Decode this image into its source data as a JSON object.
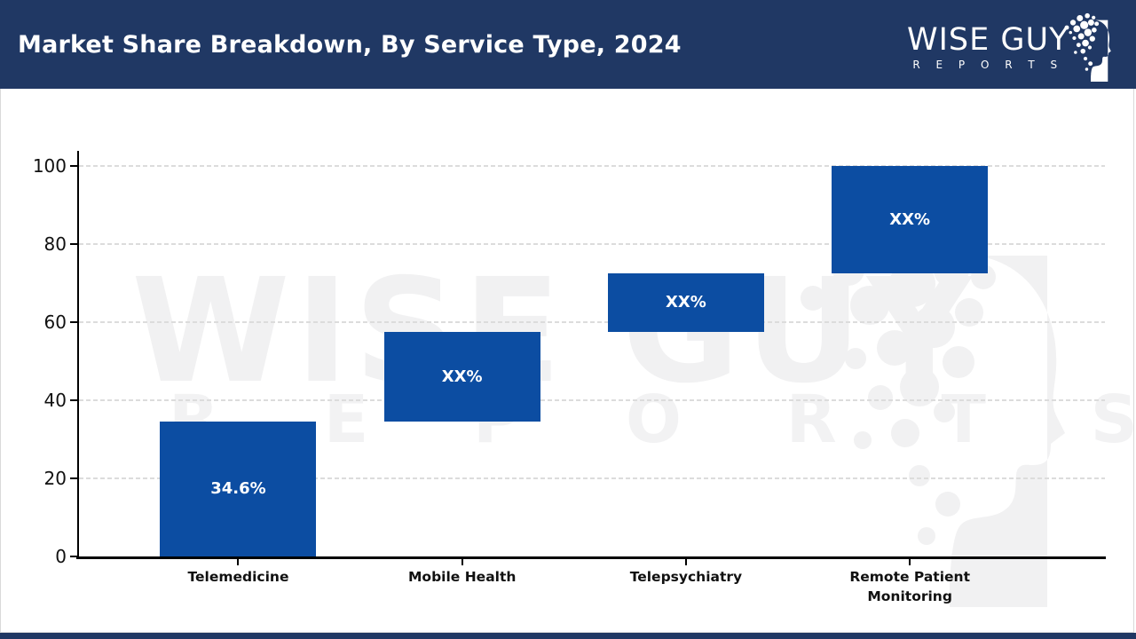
{
  "header": {
    "title": "Market Share Breakdown, By Service Type, 2024",
    "bg_color": "#203864",
    "logo": {
      "line1": "WISE GUY",
      "line2": "R E P O R T S"
    }
  },
  "watermark": {
    "line1": "WISE GUY",
    "line2": "R E P O R T S"
  },
  "chart_data": {
    "type": "bar",
    "subtype": "waterfall",
    "title": "Market Share Breakdown, By Service Type, 2024",
    "categories": [
      "Telemedicine",
      "Mobile Health",
      "Telepsychiatry",
      "Remote Patient Monitoring"
    ],
    "segments": [
      {
        "category": "Telemedicine",
        "start": 0,
        "end": 34.6,
        "label": "34.6%"
      },
      {
        "category": "Mobile Health",
        "start": 34.6,
        "end": 57.6,
        "label": "XX%"
      },
      {
        "category": "Telepsychiatry",
        "start": 57.6,
        "end": 72.4,
        "label": "XX%"
      },
      {
        "category": "Remote Patient Monitoring",
        "start": 72.4,
        "end": 100,
        "label": "XX%"
      }
    ],
    "yticks": [
      0,
      20,
      40,
      60,
      80,
      100
    ],
    "ylim": [
      0,
      105
    ],
    "xlabel": "",
    "ylabel": "",
    "grid": "horizontal-dashed",
    "legend": "none",
    "bar_color": "#0c4da2",
    "bar_label_color": "#ffffff",
    "axis_color": "#000000",
    "grid_color": "#dcdcdc"
  }
}
